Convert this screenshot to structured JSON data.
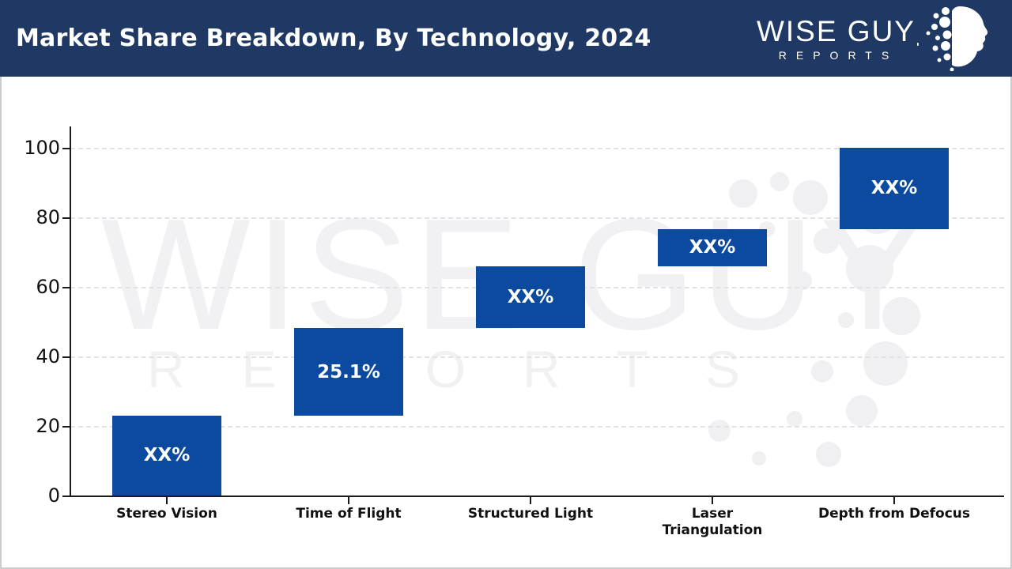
{
  "header": {
    "title": "Market Share Breakdown, By Technology, 2024",
    "logo": {
      "line1": "WISE GUY",
      "line2": "REPORTS"
    }
  },
  "watermark": {
    "line1": "WISE GUY",
    "line2": "REPORTS"
  },
  "chart_data": {
    "type": "bar",
    "subtype": "waterfall",
    "title": "Market Share Breakdown, By Technology, 2024",
    "categories": [
      "Stereo Vision",
      "Time of Flight",
      "Structured Light",
      "Laser\nTriangulation",
      "Depth from Defocus"
    ],
    "segments": [
      {
        "category": "Stereo Vision",
        "start": 0,
        "end": 23,
        "label": "XX%"
      },
      {
        "category": "Time of Flight",
        "start": 23,
        "end": 48.1,
        "label": "25.1%"
      },
      {
        "category": "Structured Light",
        "start": 48.1,
        "end": 66,
        "label": "XX%"
      },
      {
        "category": "Laser Triangulation",
        "start": 66,
        "end": 76.6,
        "label": "XX%"
      },
      {
        "category": "Depth from Defocus",
        "start": 76.6,
        "end": 100,
        "label": "XX%"
      }
    ],
    "xlabel": "",
    "ylabel": "",
    "ylim": [
      0,
      100
    ],
    "yticks": [
      0,
      20,
      40,
      60,
      80,
      100
    ],
    "grid": "horizontal-dashed",
    "legend": "none",
    "bar_color": "#0b4a9f",
    "bar_label_color": "#ffffff"
  },
  "colors": {
    "header_bg": "#1f3864",
    "bar": "#0b4a9f",
    "watermark": "#f1f1f3",
    "grid": "#e2e2e2",
    "axis": "#1a1a1a",
    "frame_border": "#cccccc"
  }
}
